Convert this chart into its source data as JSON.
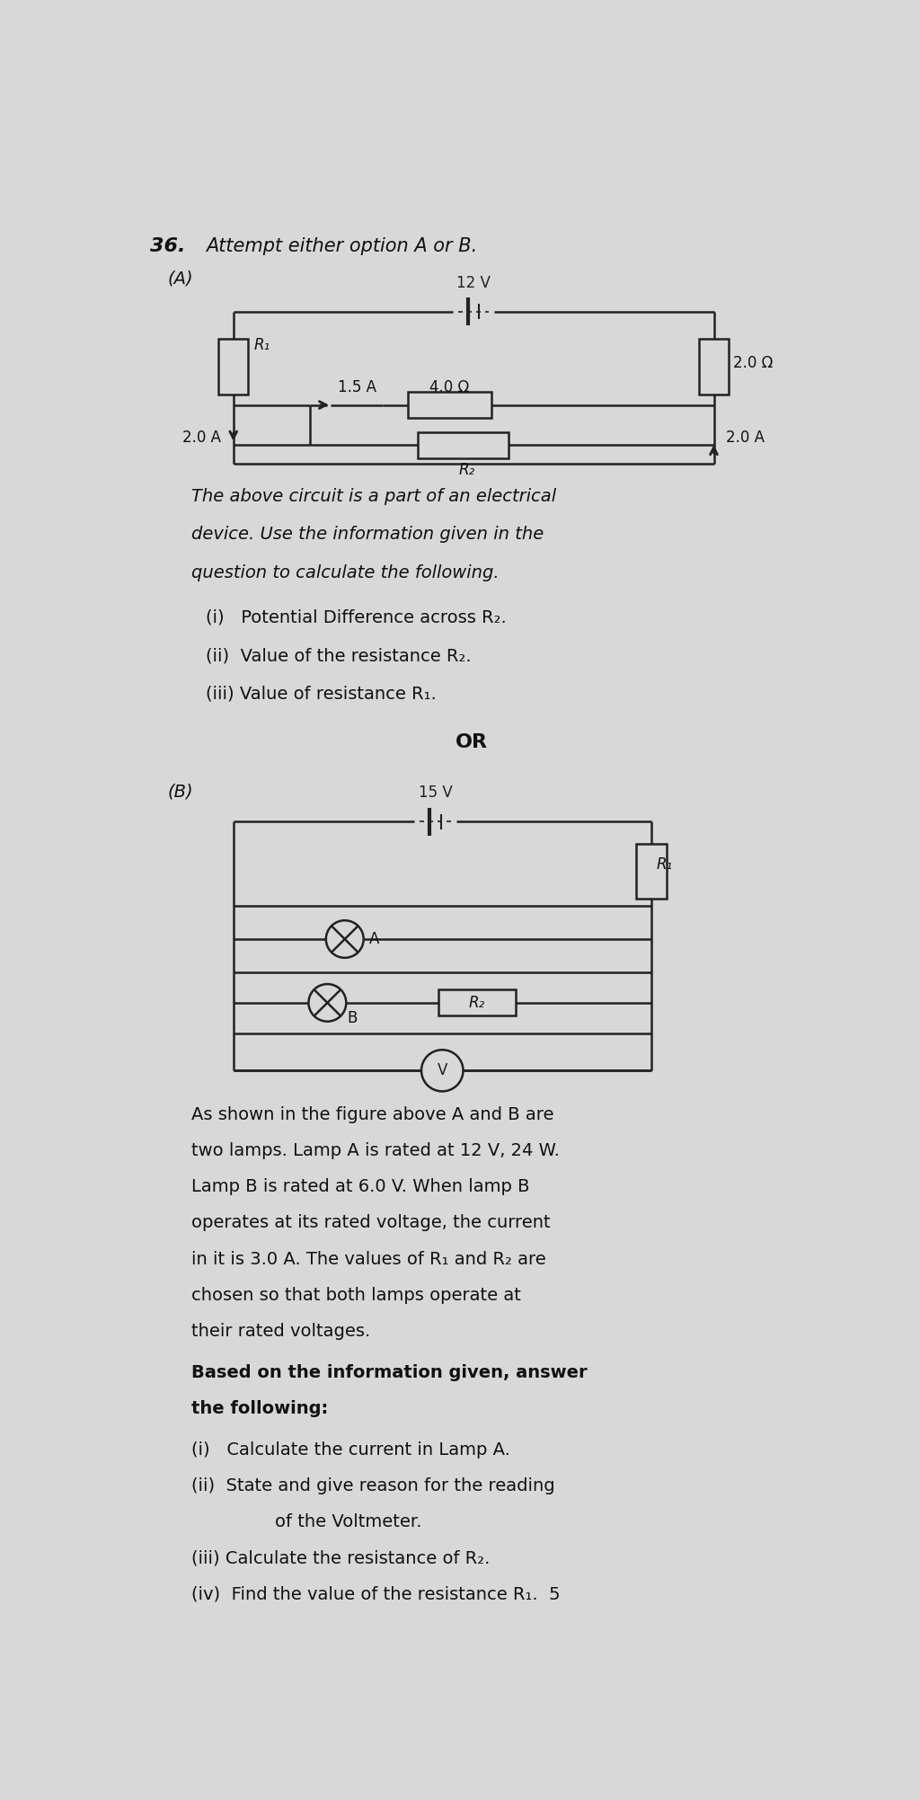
{
  "bg_color": "#d8d8d8",
  "text_color": "#111111",
  "line_color": "#222222",
  "question_num": "36.",
  "question_header": "Attempt either option A or B.",
  "option_A_label": "(A)",
  "option_B_label": "(B)",
  "circuit_A": {
    "battery_label": "12 V",
    "r1_label": "R₁",
    "r4ohm_label": "4.0 Ω",
    "r3_label": "2.0 Ω",
    "r_bottom_label": "R₂",
    "current1": "1.5 A",
    "current2_left": "2.0 A",
    "current2_right": "2.0 A"
  },
  "circuit_B": {
    "battery_label": "15 V",
    "r1_label": "R₁",
    "r2_label": "R₂",
    "lamp_a_label": "A",
    "lamp_b_label": "B",
    "voltmeter_label": "V"
  },
  "text_A_para": "The above circuit is a part of an electrical\ndevice. Use the information given in the\nquestion to calculate the following.",
  "text_A_items": [
    "(i)   Potential Difference across R₂.",
    "(ii)  Value of the resistance R₂.",
    "(iii) Value of resistance R₁."
  ],
  "or_text": "OR",
  "text_B_para": "As shown in the figure above A and B are\ntwo lamps. Lamp A is rated at 12 V, 24 W.\nLamp B is rated at 6.0 V. When lamp B\noperates at its rated voltage, the current\nin it is 3.0 A. The values of R₁ and R₂ are\nchosen so that both lamps operate at\ntheir rated voltages.",
  "text_B_bold": "Based on the information given, answer\nthe following:",
  "text_B_items": [
    "(i)   Calculate the current in Lamp A.",
    "(ii)  State and give reason for the reading\n        of the Voltmeter.",
    "(iii) Calculate the resistance of R₂.",
    "(iv)  Find the value of the resistance R₁.  5"
  ],
  "page_width": 10.24,
  "page_height": 20.03
}
